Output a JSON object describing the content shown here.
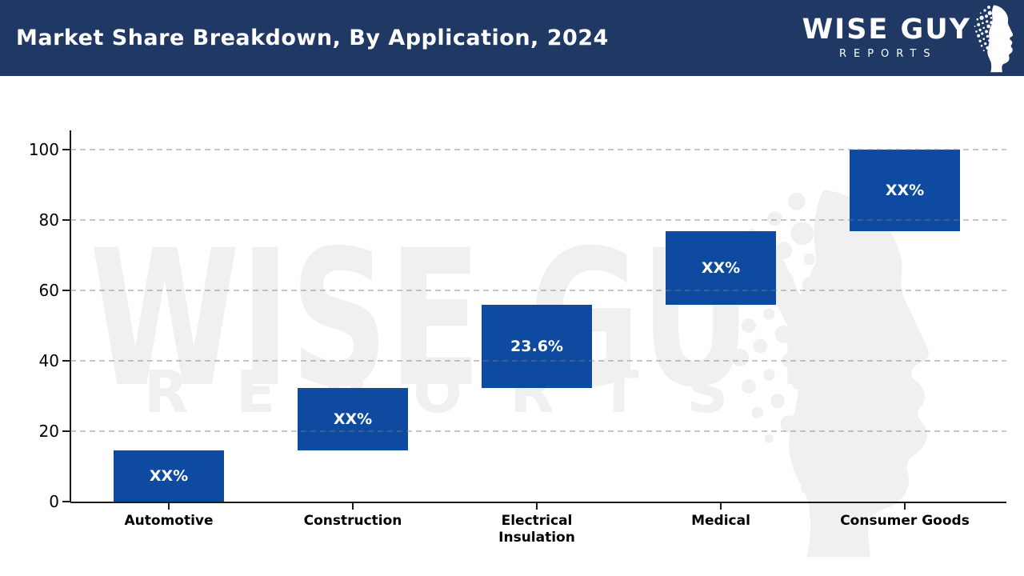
{
  "header": {
    "title": "Market Share Breakdown, By Application, 2024",
    "logo_line1": "WISE GUY",
    "logo_line2": "REPORTS"
  },
  "watermark": {
    "line1": "WISE GUY",
    "line2": "REPORTS"
  },
  "colors": {
    "header_bg": "#1f3864",
    "bar_blue": "#0d4aa0",
    "axis": "#1a1a1a",
    "watermark_gray": "#f0f0f1"
  },
  "chart_data": {
    "type": "bar",
    "subtype": "floating-waterfall",
    "title": "Market Share Breakdown, By Application, 2024",
    "xlabel": "",
    "ylabel": "",
    "ylim": [
      0,
      100
    ],
    "yticks": [
      0,
      20,
      40,
      60,
      80,
      100
    ],
    "grid": "horizontal-dashed",
    "legend": "none",
    "bar_color": "#0d4aa0",
    "categories": [
      "Automotive",
      "Construction",
      "Electrical Insulation",
      "Medical",
      "Consumer Goods"
    ],
    "category_lines": [
      [
        "Automotive"
      ],
      [
        "Construction"
      ],
      [
        "Electrical",
        "Insulation"
      ],
      [
        "Medical"
      ],
      [
        "Consumer Goods"
      ]
    ],
    "segments": [
      {
        "category": "Automotive",
        "start": 0,
        "end": 14.5,
        "label": "XX%"
      },
      {
        "category": "Construction",
        "start": 14.5,
        "end": 32.3,
        "label": "XX%"
      },
      {
        "category": "Electrical Insulation",
        "start": 32.3,
        "end": 55.9,
        "label": "23.6%"
      },
      {
        "category": "Medical",
        "start": 55.9,
        "end": 76.9,
        "label": "XX%"
      },
      {
        "category": "Consumer Goods",
        "start": 76.9,
        "end": 100,
        "label": "XX%"
      }
    ]
  }
}
